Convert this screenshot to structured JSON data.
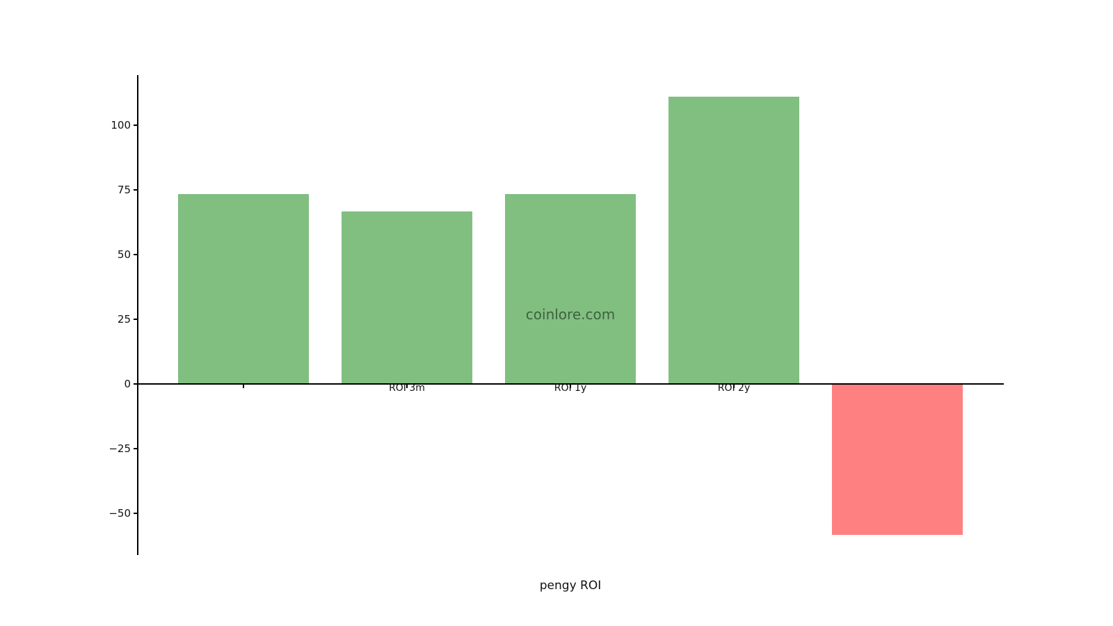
{
  "watermark_text": "coinlore.com",
  "chart_data": {
    "type": "bar",
    "title": "",
    "xlabel": "pengy ROI",
    "ylabel": "",
    "categories": [
      "",
      "ROI 3m",
      "ROI 1y",
      "ROI 2y",
      ""
    ],
    "values": [
      73.4,
      66.8,
      73.4,
      111.1,
      -58.4
    ],
    "bar_colors": [
      "#80bf80",
      "#80bf80",
      "#80bf80",
      "#80bf80",
      "#ff8080"
    ],
    "positive_color": "#80bf80",
    "negative_color": "#ff8080",
    "y_ticks": [
      100,
      75,
      50,
      25,
      0,
      -25,
      -50
    ],
    "ylim": [
      -66,
      120
    ],
    "grid": false,
    "legend": null,
    "axis_color": "#000000",
    "text_color": "#111111"
  }
}
